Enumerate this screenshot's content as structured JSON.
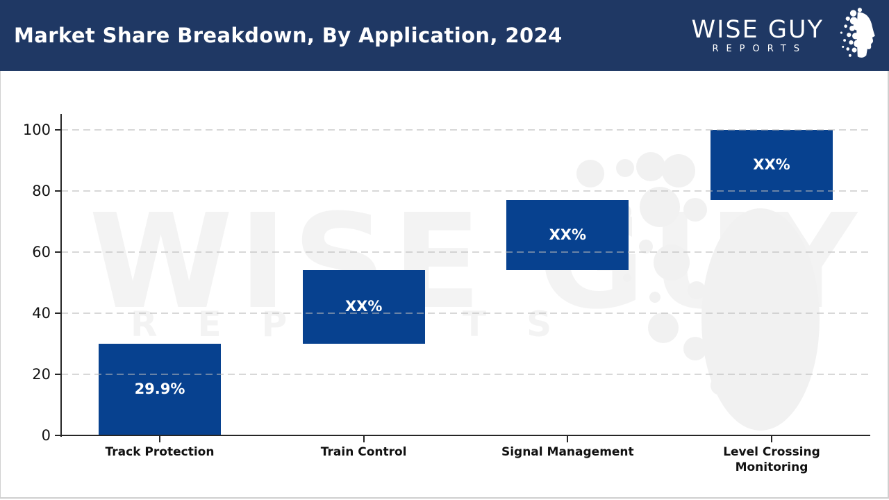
{
  "header": {
    "title": "Market Share Breakdown, By Application, 2024"
  },
  "logo": {
    "line1": "WISE GUY",
    "line2": "REPORTS",
    "head_icon": "dotted-face-profile"
  },
  "watermark": {
    "line1": "WISE GUY",
    "line2": "REPORTS"
  },
  "chart_data": {
    "type": "bar",
    "subtype": "waterfall",
    "title": "Market Share Breakdown, By Application, 2024",
    "categories": [
      "Track Protection",
      "Train Control",
      "Signal Management",
      "Level Crossing Monitoring"
    ],
    "segments": [
      {
        "category": "Track Protection",
        "start": 0,
        "end": 29.9,
        "label": "29.9%"
      },
      {
        "category": "Train Control",
        "start": 30,
        "end": 54,
        "label": "XX%"
      },
      {
        "category": "Signal Management",
        "start": 54,
        "end": 77,
        "label": "XX%"
      },
      {
        "category": "Level Crossing Monitoring",
        "start": 77,
        "end": 100,
        "label": "XX%"
      }
    ],
    "xlabel": "",
    "ylabel": "",
    "yticks": [
      0,
      20,
      40,
      60,
      80,
      100
    ],
    "ylim": [
      0,
      105
    ],
    "grid": "horizontal-dashed",
    "legend": "none",
    "bar_color": "#07418f",
    "bar_label_color": "#ffffff",
    "axis_color": "#262626",
    "gridline_color": "#c9c9c9",
    "header_bg_color": "#1f3864",
    "watermark_color": "#f3f3f3"
  }
}
